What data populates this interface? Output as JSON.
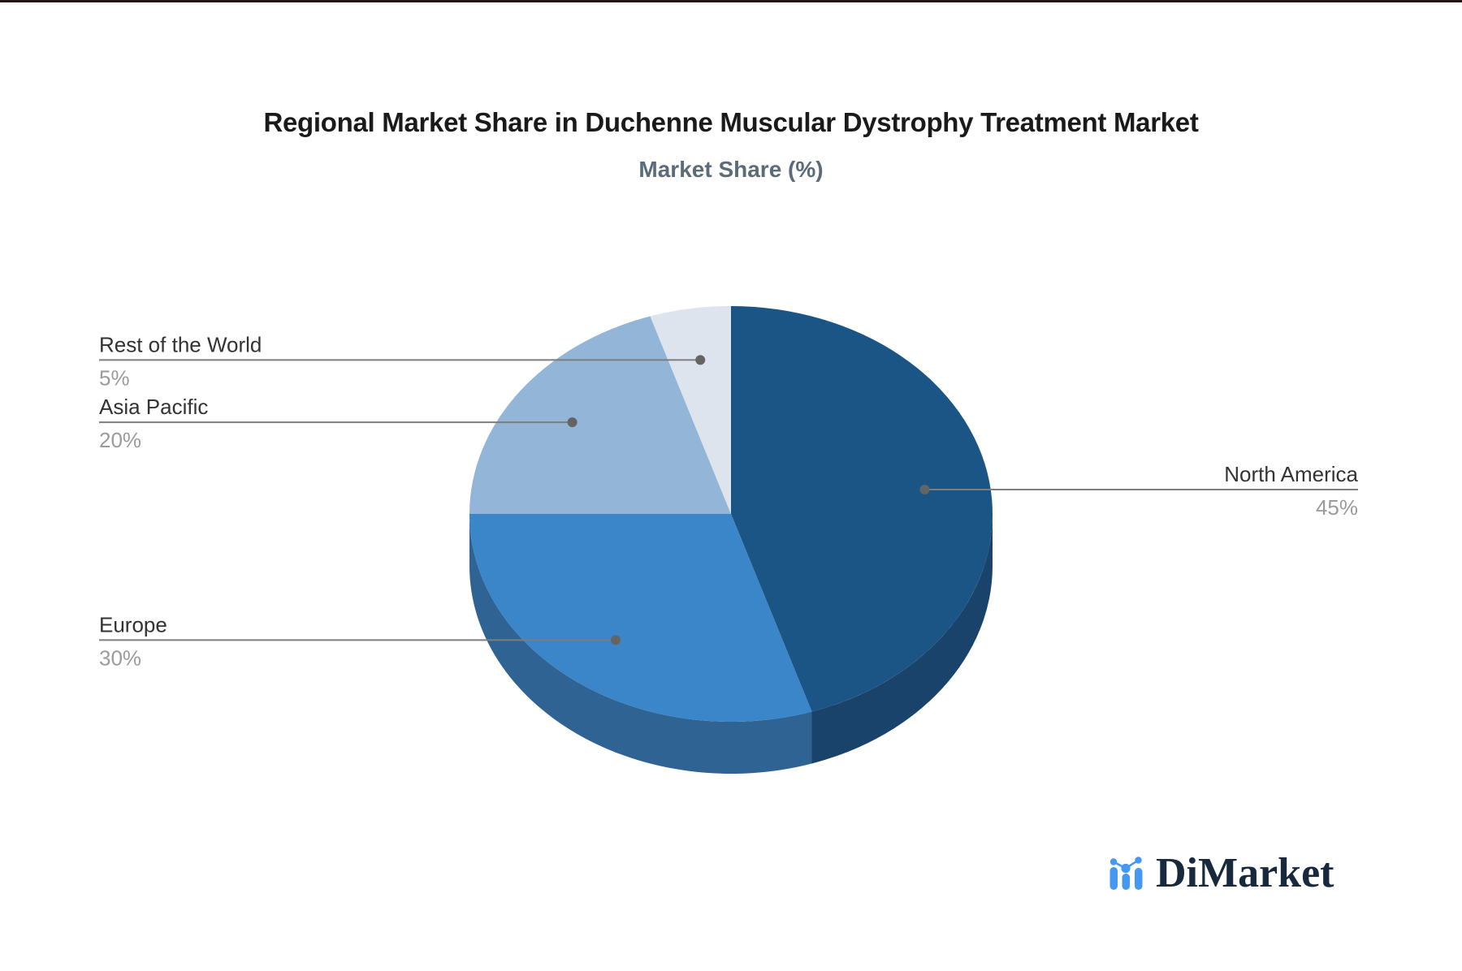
{
  "header": {
    "title": "Regional Market Share in Duchenne Muscular Dystrophy Treatment Market",
    "subtitle": "Market Share (%)"
  },
  "chart_data": {
    "type": "pie",
    "title": "Regional Market Share in Duchenne Muscular Dystrophy Treatment Market",
    "subtitle": "Market Share (%)",
    "unit": "%",
    "style_3d": true,
    "start_angle_deg": 0,
    "direction": "clockwise",
    "legend": "none",
    "categories": [
      "North America",
      "Europe",
      "Asia Pacific",
      "Rest of the World"
    ],
    "values": [
      45,
      30,
      20,
      5
    ],
    "pct_labels": [
      "45%",
      "30%",
      "20%",
      "5%"
    ],
    "colors": [
      "#1b5586",
      "#3a86c8",
      "#92b5d8",
      "#dde4ee"
    ],
    "side_colors": [
      "#1a436b",
      "#2e6394",
      "#7d9cbd",
      "#c3cdda"
    ],
    "label_style": {
      "name_color": "#333333",
      "pct_color": "#9b9b9b",
      "line_color": "#7d7d7d",
      "dot_color": "#646464"
    }
  },
  "branding": {
    "logo_text": "DiMarket",
    "logo_text_color": "#18293e",
    "logo_icon_color": "#4598f2",
    "logo_icon_name": "bar-line-chart-icon"
  }
}
